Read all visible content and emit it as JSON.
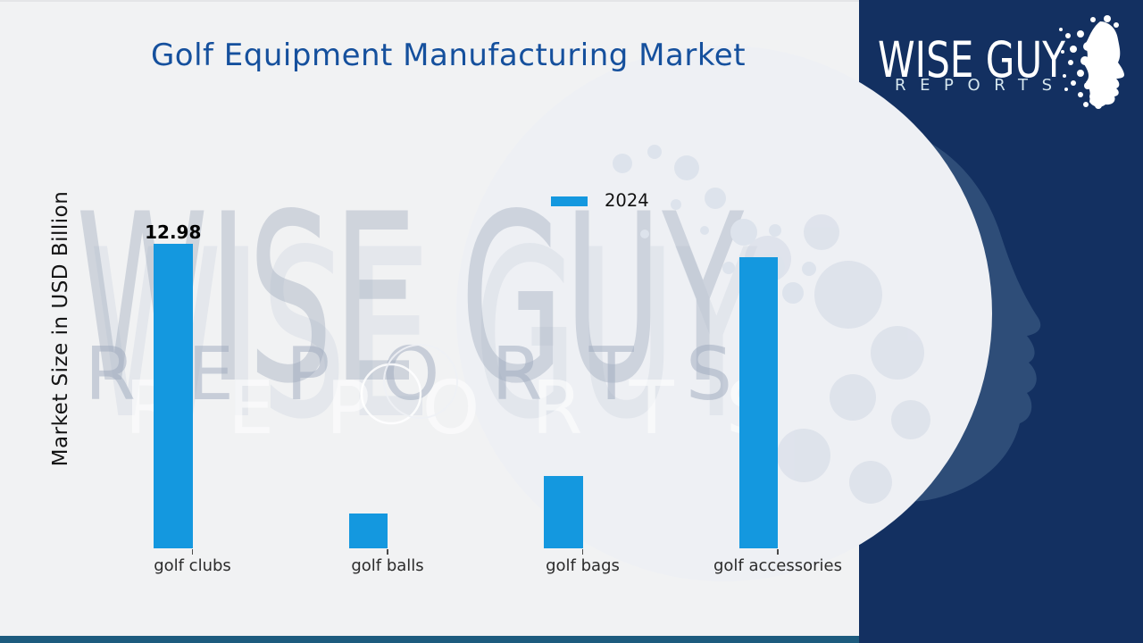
{
  "title": "Golf Equipment Manufacturing Market",
  "chart_data": {
    "type": "bar",
    "title": "Golf Equipment Manufacturing Market",
    "xlabel": "",
    "ylabel": "Market Size in USD Billion",
    "categories": [
      "golf clubs",
      "golf balls",
      "golf bags",
      "golf accessories"
    ],
    "series": [
      {
        "name": "2024",
        "values": [
          12.98,
          1.5,
          3.1,
          12.4
        ]
      }
    ],
    "value_labels": [
      "12.98",
      "",
      "",
      ""
    ],
    "ylim": [
      0,
      13.5
    ],
    "grid": false,
    "legend_position": "top-right",
    "bar_color": "#1498df"
  },
  "legend": {
    "label": "2024",
    "swatch_color": "#1498df"
  },
  "watermark": {
    "line1": "WISE GUY",
    "line2": "REPORTS"
  },
  "logo": {
    "line1": "WISE GUY",
    "line2": "REPORTS"
  },
  "colors": {
    "background": "#f1f2f3",
    "title": "#15509d",
    "bar": "#1498df",
    "navy_panel": "#133061",
    "bottom_bar": "#1d5b7e",
    "face_ghost": "#2e4d78",
    "watermark_text": "#a6b1c2"
  }
}
